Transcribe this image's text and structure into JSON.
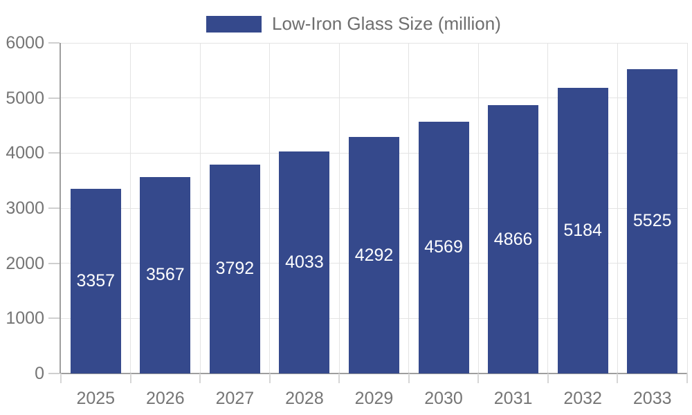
{
  "chart_data": {
    "type": "bar",
    "title": "Low-Iron Glass Size (million)",
    "categories": [
      "2025",
      "2026",
      "2027",
      "2028",
      "2029",
      "2030",
      "2031",
      "2032",
      "2033"
    ],
    "series": [
      {
        "name": "Low-Iron Glass Size (million)",
        "values": [
          3357,
          3567,
          3792,
          4033,
          4292,
          4569,
          4866,
          5184,
          5525
        ]
      }
    ],
    "xlabel": "",
    "ylabel": "",
    "ylim": [
      0,
      6000
    ],
    "yticks": [
      0,
      1000,
      2000,
      3000,
      4000,
      5000,
      6000
    ],
    "grid": "on",
    "legend_position": "top-center",
    "bar_label_position": "inside-center",
    "colors": {
      "bar": "#35498C",
      "bar_label": "#FFFFFF",
      "axis_text": "#757575",
      "legend_text": "#6E6E6E",
      "gridline": "#E3E3E3",
      "axis_line": "#9E9E9E",
      "tick_mark": "#CFCFCF",
      "background": "#FFFFFF"
    }
  }
}
